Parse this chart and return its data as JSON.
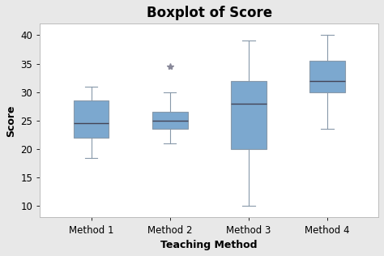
{
  "title": "Boxplot of Score",
  "xlabel": "Teaching Method",
  "ylabel": "Score",
  "categories": [
    "Method 1",
    "Method 2",
    "Method 3",
    "Method 4"
  ],
  "boxes": [
    {
      "q1": 22,
      "median": 24.5,
      "q3": 28.5,
      "whislo": 18.5,
      "whishi": 31.0,
      "fliers": []
    },
    {
      "q1": 23.5,
      "median": 25.0,
      "q3": 26.5,
      "whislo": 21.0,
      "whishi": 30.0,
      "fliers": [
        34.5
      ]
    },
    {
      "q1": 20,
      "median": 28.0,
      "q3": 32.0,
      "whislo": 10.0,
      "whishi": 39.0,
      "fliers": []
    },
    {
      "q1": 30,
      "median": 32.0,
      "q3": 35.5,
      "whislo": 23.5,
      "whishi": 40.0,
      "fliers": []
    }
  ],
  "ylim": [
    8,
    42
  ],
  "yticks": [
    10,
    15,
    20,
    25,
    30,
    35,
    40
  ],
  "box_color": "#7ca8cf",
  "box_edge_color": "#8899aa",
  "median_color": "#444455",
  "whisker_color": "#8899aa",
  "cap_color": "#8899aa",
  "flier_color": "#888899",
  "background_color": "#e8e8e8",
  "plot_bg_color": "#ffffff",
  "title_fontsize": 12,
  "label_fontsize": 9,
  "tick_fontsize": 8.5
}
